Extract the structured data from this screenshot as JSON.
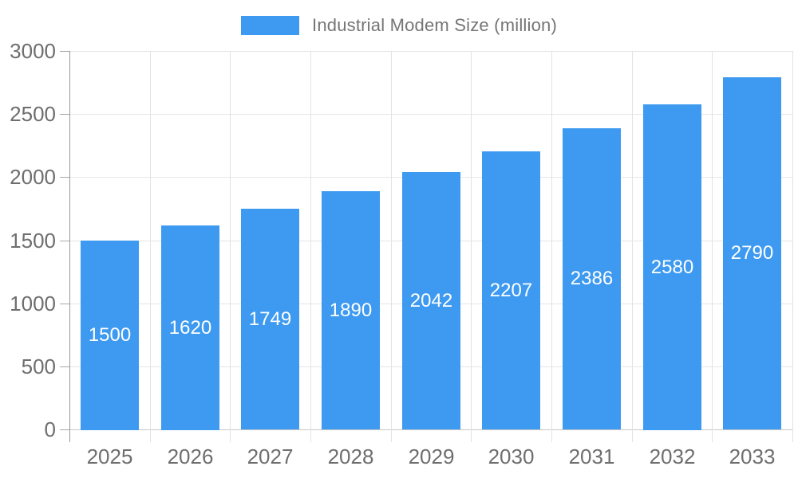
{
  "legend": {
    "label": "Industrial Modem Size (million)"
  },
  "colors": {
    "bar": "#3d9af0",
    "grid": "#e6e6e6",
    "axis_line": "#9a9a9a",
    "tick_label": "#6e6e6e",
    "legend_text": "#757575",
    "value_label": "#ffffff"
  },
  "chart_data": {
    "type": "bar",
    "title": "Industrial Modem Size (million)",
    "categories": [
      "2025",
      "2026",
      "2027",
      "2028",
      "2029",
      "2030",
      "2031",
      "2032",
      "2033"
    ],
    "values": [
      1500,
      1620,
      1749,
      1890,
      2042,
      2207,
      2386,
      2580,
      2790
    ],
    "xlabel": "",
    "ylabel": "",
    "ylim": [
      0,
      3000
    ],
    "yticks": [
      0,
      500,
      1000,
      1500,
      2000,
      2500,
      3000
    ],
    "grid": true,
    "legend_position": "top",
    "value_labels": "inside-center",
    "bar_color": "#3d9af0"
  }
}
